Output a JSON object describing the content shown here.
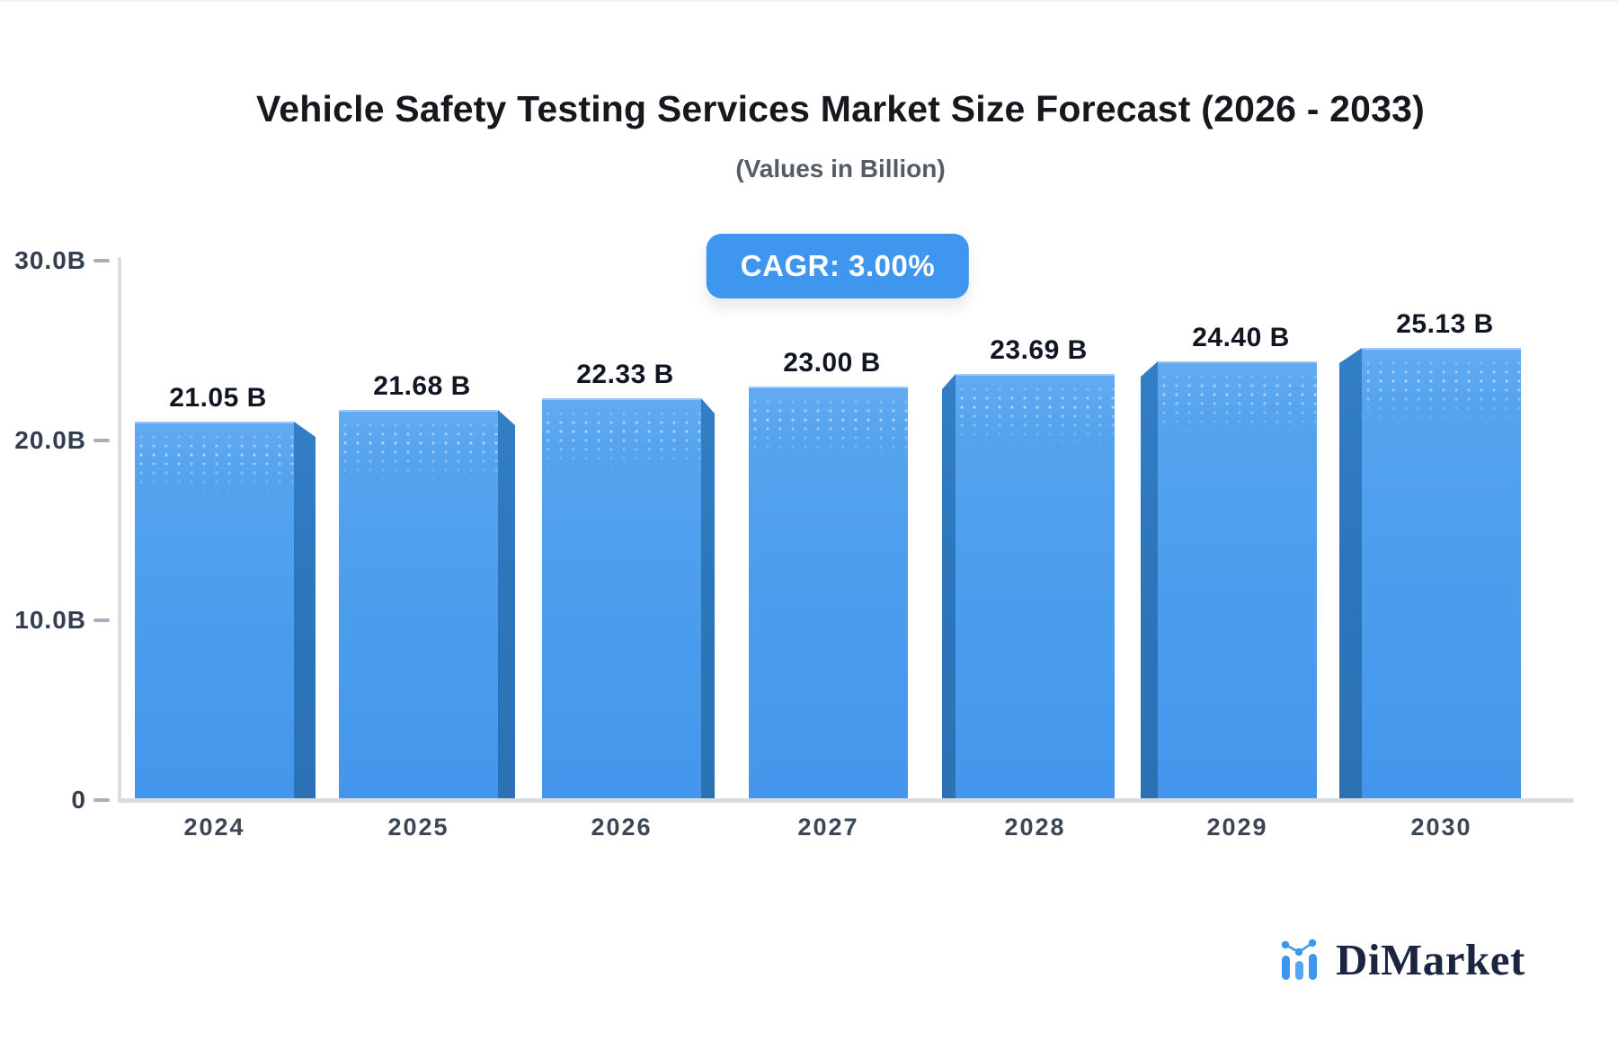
{
  "header": {
    "title": "Vehicle Safety Testing Services Market Size Forecast (2026 - 2033)",
    "subtitle": "(Values in Billion)"
  },
  "badge": {
    "label": "CAGR: 3.00%",
    "color": "#3e96ee"
  },
  "chart_data": {
    "type": "bar",
    "title": "Vehicle Safety Testing Services Market Size Forecast (2026 - 2033)",
    "subtitle": "(Values in Billion)",
    "categories": [
      "2024",
      "2025",
      "2026",
      "2027",
      "2028",
      "2029",
      "2030"
    ],
    "values": [
      21.05,
      21.68,
      22.33,
      23.0,
      23.69,
      24.4,
      25.13
    ],
    "data_labels": [
      "21.05 B",
      "21.68 B",
      "22.33 B",
      "23.00 B",
      "23.69 B",
      "24.40 B",
      "25.13 B"
    ],
    "xlabel": "",
    "ylabel": "",
    "ylim": [
      0,
      30
    ],
    "yticks": [
      {
        "label": "30.0B",
        "value": 30
      },
      {
        "label": "20.0B",
        "value": 20
      },
      {
        "label": "10.0B",
        "value": 10
      },
      {
        "label": "0",
        "value": 0
      }
    ],
    "grid": false,
    "legend": false,
    "cagr_percent": "3.00%",
    "bar_color": "#4a9ded",
    "bar_side_color": "#2d77bd",
    "axis_color": "#d9dce1",
    "label_color": "#101722"
  },
  "logo": {
    "text": "DiMarket",
    "icon": "dimarket-bar-chart-icon",
    "text_color": "#1b2440",
    "accent_color": "#3e96ee"
  }
}
